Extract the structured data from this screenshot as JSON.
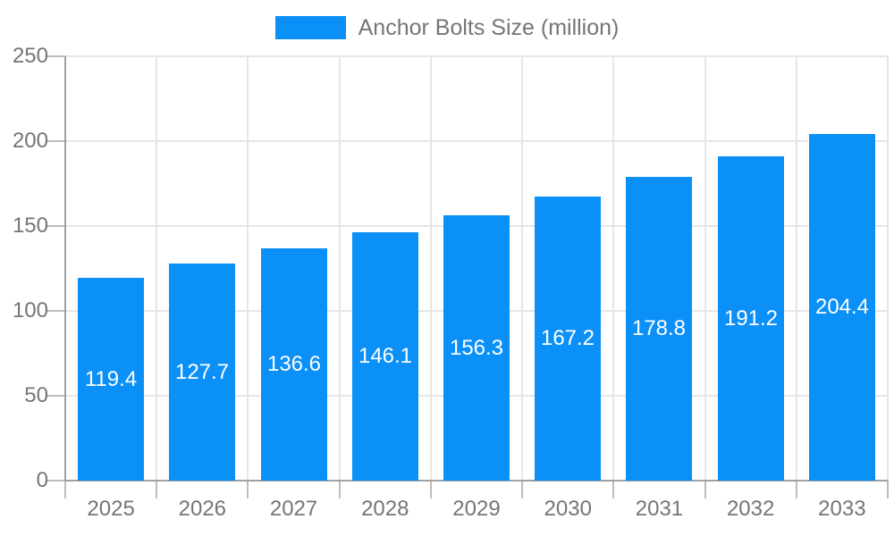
{
  "chart_data": {
    "type": "bar",
    "title": "Anchor Bolts Size (million)",
    "categories": [
      "2025",
      "2026",
      "2027",
      "2028",
      "2029",
      "2030",
      "2031",
      "2032",
      "2033"
    ],
    "series": [
      {
        "name": "Anchor Bolts Size (million)",
        "values": [
          119.4,
          127.7,
          136.6,
          146.1,
          156.3,
          167.2,
          178.8,
          191.2,
          204.4
        ]
      }
    ],
    "xlabel": "",
    "ylabel": "",
    "ylim": [
      0,
      250
    ],
    "y_ticks": [
      0,
      50,
      100,
      150,
      200,
      250
    ],
    "grid": true,
    "legend_position": "top-center",
    "value_label_position": "inside-center",
    "value_label_decimals": 1
  },
  "colors": {
    "bar": "#0b90f7",
    "axis_text": "#757575",
    "value_label": "#ffffff",
    "grid": "#e6e6e6",
    "axis_line": "#a0a0a0",
    "tick": "#bdbdbd",
    "background": "#ffffff"
  }
}
